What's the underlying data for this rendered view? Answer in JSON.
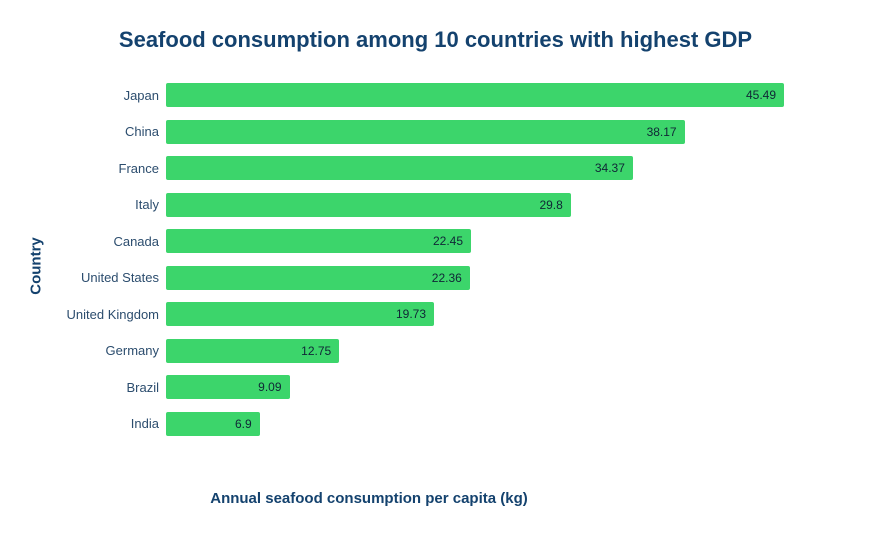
{
  "chart_data": {
    "type": "bar",
    "orientation": "horizontal",
    "title": "Seafood consumption among 10 countries with highest GDP",
    "xlabel": "Annual seafood consumption per capita (kg)",
    "ylabel": "Country",
    "categories": [
      "Japan",
      "China",
      "France",
      "Italy",
      "Canada",
      "United States",
      "United Kingdom",
      "Germany",
      "Brazil",
      "India"
    ],
    "values": [
      45.49,
      38.17,
      34.37,
      29.8,
      22.45,
      22.36,
      19.73,
      12.75,
      9.09,
      6.9
    ],
    "value_labels": [
      "45.49",
      "38.17",
      "34.37",
      "29.8",
      "22.45",
      "22.36",
      "19.73",
      "12.75",
      "9.09",
      "6.9"
    ],
    "xlim": [
      0,
      45.49
    ],
    "grid": false,
    "legend": false,
    "bars_labeled": true,
    "colors": {
      "bar": "#3cd56b",
      "title": "#14426e",
      "tick_label": "#2c4d6e",
      "value_label": "#102636",
      "background": "#ffffff"
    }
  }
}
